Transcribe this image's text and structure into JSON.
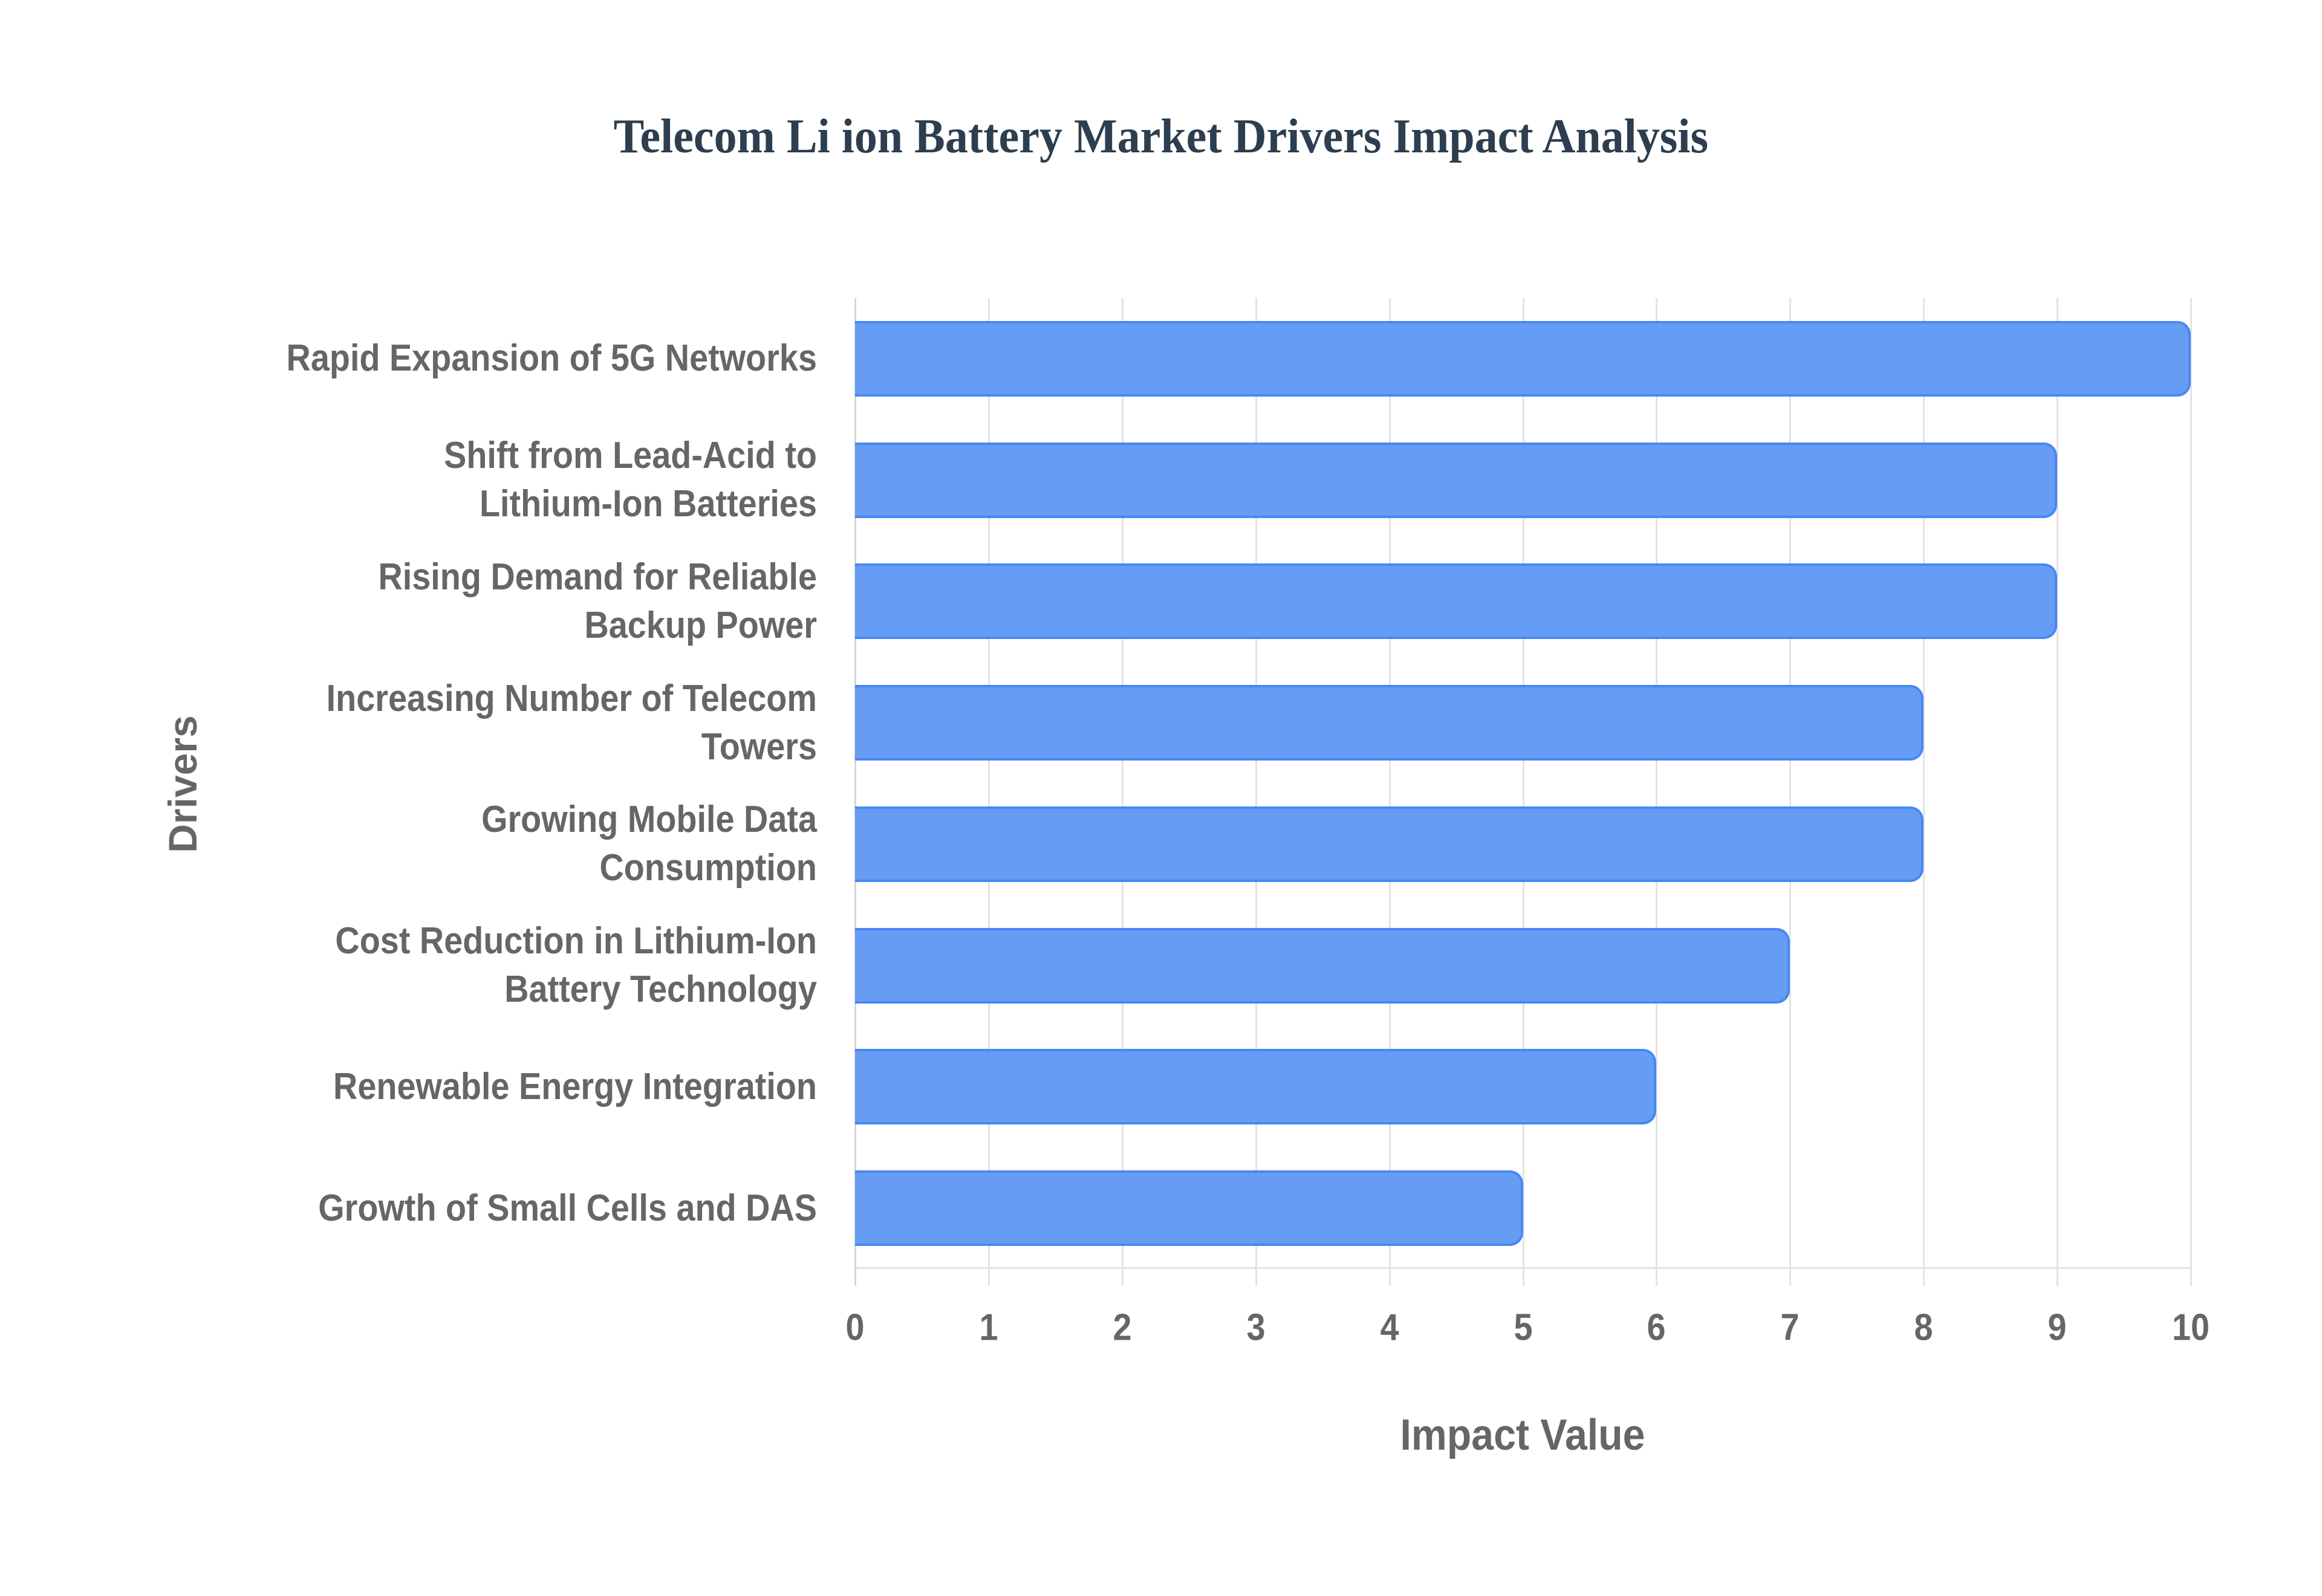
{
  "chart_data": {
    "type": "bar",
    "orientation": "horizontal",
    "title": "Telecom Li ion Battery Market Drivers Impact Analysis",
    "xlabel": "Impact Value",
    "ylabel": "Drivers",
    "xlim": [
      0,
      10
    ],
    "x_ticks": [
      "0",
      "1",
      "2",
      "3",
      "4",
      "5",
      "6",
      "7",
      "8",
      "9",
      "10"
    ],
    "grid": true,
    "legend": null,
    "categories": [
      "Rapid Expansion of 5G Networks",
      "Shift from Lead-Acid to Lithium-Ion Batteries",
      "Rising Demand for Reliable Backup Power",
      "Increasing Number of Telecom Towers",
      "Growing Mobile Data Consumption",
      "Cost Reduction in Lithium-Ion Battery Technology",
      "Renewable Energy Integration",
      "Growth of Small Cells and DAS"
    ],
    "values": [
      10,
      9,
      9,
      8,
      8,
      7,
      6,
      5
    ],
    "bar_color": "#6399F5",
    "bar_border_color": "#4285F4"
  },
  "labels": [
    {
      "lines": [
        "Rapid Expansion of 5G Networks"
      ]
    },
    {
      "lines": [
        "Shift from Lead-Acid to",
        "Lithium-Ion Batteries"
      ]
    },
    {
      "lines": [
        "Rising Demand for Reliable",
        "Backup Power"
      ]
    },
    {
      "lines": [
        "Increasing Number of Telecom",
        "Towers"
      ]
    },
    {
      "lines": [
        "Growing Mobile Data",
        "Consumption"
      ]
    },
    {
      "lines": [
        "Cost Reduction in Lithium-Ion",
        "Battery Technology"
      ]
    },
    {
      "lines": [
        "Renewable Energy Integration"
      ]
    },
    {
      "lines": [
        "Growth of Small Cells and DAS"
      ]
    }
  ]
}
